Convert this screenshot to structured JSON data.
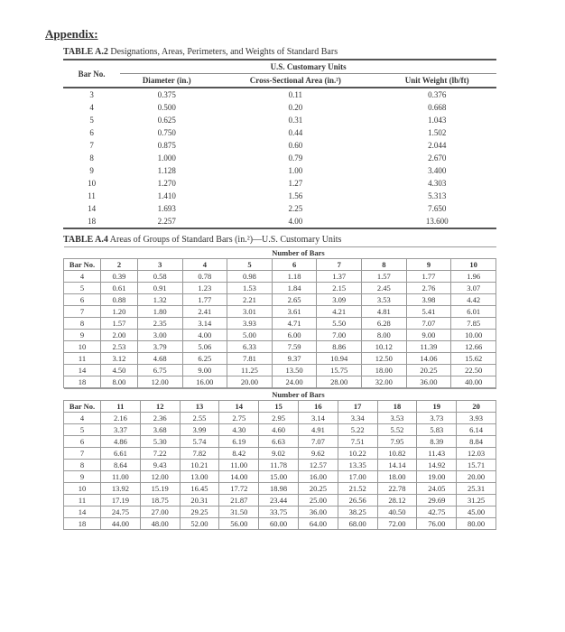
{
  "appendix": "Appendix:",
  "tableA2": {
    "label": "TABLE A.2",
    "caption": "Designations, Areas, Perimeters, and Weights of Standard Bars",
    "superHeader": "U.S. Customary Units",
    "cols": [
      "Bar No.",
      "Diameter (in.)",
      "Cross-Sectional Area (in.²)",
      "Unit Weight (lb/ft)"
    ],
    "rows": [
      [
        "3",
        "0.375",
        "0.11",
        "0.376"
      ],
      [
        "4",
        "0.500",
        "0.20",
        "0.668"
      ],
      [
        "5",
        "0.625",
        "0.31",
        "1.043"
      ],
      [
        "6",
        "0.750",
        "0.44",
        "1.502"
      ],
      [
        "7",
        "0.875",
        "0.60",
        "2.044"
      ],
      [
        "8",
        "1.000",
        "0.79",
        "2.670"
      ],
      [
        "9",
        "1.128",
        "1.00",
        "3.400"
      ],
      [
        "10",
        "1.270",
        "1.27",
        "4.303"
      ],
      [
        "11",
        "1.410",
        "1.56",
        "5.313"
      ],
      [
        "14",
        "1.693",
        "2.25",
        "7.650"
      ],
      [
        "18",
        "2.257",
        "4.00",
        "13.600"
      ]
    ]
  },
  "tableA4": {
    "label": "TABLE A.4",
    "caption": "Areas of Groups of Standard Bars (in.²)—U.S. Customary Units",
    "nobHeader": "Number of Bars",
    "barNoHeader": "Bar No.",
    "part1": {
      "cols": [
        "2",
        "3",
        "4",
        "5",
        "6",
        "7",
        "8",
        "9",
        "10"
      ],
      "barNos": [
        "4",
        "5",
        "6",
        "7",
        "8",
        "9",
        "10",
        "11",
        "14",
        "18"
      ],
      "rows": [
        [
          "0.39",
          "0.58",
          "0.78",
          "0.98",
          "1.18",
          "1.37",
          "1.57",
          "1.77",
          "1.96"
        ],
        [
          "0.61",
          "0.91",
          "1.23",
          "1.53",
          "1.84",
          "2.15",
          "2.45",
          "2.76",
          "3.07"
        ],
        [
          "0.88",
          "1.32",
          "1.77",
          "2.21",
          "2.65",
          "3.09",
          "3.53",
          "3.98",
          "4.42"
        ],
        [
          "1.20",
          "1.80",
          "2.41",
          "3.01",
          "3.61",
          "4.21",
          "4.81",
          "5.41",
          "6.01"
        ],
        [
          "1.57",
          "2.35",
          "3.14",
          "3.93",
          "4.71",
          "5.50",
          "6.28",
          "7.07",
          "7.85"
        ],
        [
          "2.00",
          "3.00",
          "4.00",
          "5.00",
          "6.00",
          "7.00",
          "8.00",
          "9.00",
          "10.00"
        ],
        [
          "2.53",
          "3.79",
          "5.06",
          "6.33",
          "7.59",
          "8.86",
          "10.12",
          "11.39",
          "12.66"
        ],
        [
          "3.12",
          "4.68",
          "6.25",
          "7.81",
          "9.37",
          "10.94",
          "12.50",
          "14.06",
          "15.62"
        ],
        [
          "4.50",
          "6.75",
          "9.00",
          "11.25",
          "13.50",
          "15.75",
          "18.00",
          "20.25",
          "22.50"
        ],
        [
          "8.00",
          "12.00",
          "16.00",
          "20.00",
          "24.00",
          "28.00",
          "32.00",
          "36.00",
          "40.00"
        ]
      ]
    },
    "part2": {
      "cols": [
        "11",
        "12",
        "13",
        "14",
        "15",
        "16",
        "17",
        "18",
        "19",
        "20"
      ],
      "barNos": [
        "4",
        "5",
        "6",
        "7",
        "8",
        "9",
        "10",
        "11",
        "14",
        "18"
      ],
      "rows": [
        [
          "2.16",
          "2.36",
          "2.55",
          "2.75",
          "2.95",
          "3.14",
          "3.34",
          "3.53",
          "3.73",
          "3.93"
        ],
        [
          "3.37",
          "3.68",
          "3.99",
          "4.30",
          "4.60",
          "4.91",
          "5.22",
          "5.52",
          "5.83",
          "6.14"
        ],
        [
          "4.86",
          "5.30",
          "5.74",
          "6.19",
          "6.63",
          "7.07",
          "7.51",
          "7.95",
          "8.39",
          "8.84"
        ],
        [
          "6.61",
          "7.22",
          "7.82",
          "8.42",
          "9.02",
          "9.62",
          "10.22",
          "10.82",
          "11.43",
          "12.03"
        ],
        [
          "8.64",
          "9.43",
          "10.21",
          "11.00",
          "11.78",
          "12.57",
          "13.35",
          "14.14",
          "14.92",
          "15.71"
        ],
        [
          "11.00",
          "12.00",
          "13.00",
          "14.00",
          "15.00",
          "16.00",
          "17.00",
          "18.00",
          "19.00",
          "20.00"
        ],
        [
          "13.92",
          "15.19",
          "16.45",
          "17.72",
          "18.98",
          "20.25",
          "21.52",
          "22.78",
          "24.05",
          "25.31"
        ],
        [
          "17.19",
          "18.75",
          "20.31",
          "21.87",
          "23.44",
          "25.00",
          "26.56",
          "28.12",
          "29.69",
          "31.25"
        ],
        [
          "24.75",
          "27.00",
          "29.25",
          "31.50",
          "33.75",
          "36.00",
          "38.25",
          "40.50",
          "42.75",
          "45.00"
        ],
        [
          "44.00",
          "48.00",
          "52.00",
          "56.00",
          "60.00",
          "64.00",
          "68.00",
          "72.00",
          "76.00",
          "80.00"
        ]
      ]
    }
  }
}
